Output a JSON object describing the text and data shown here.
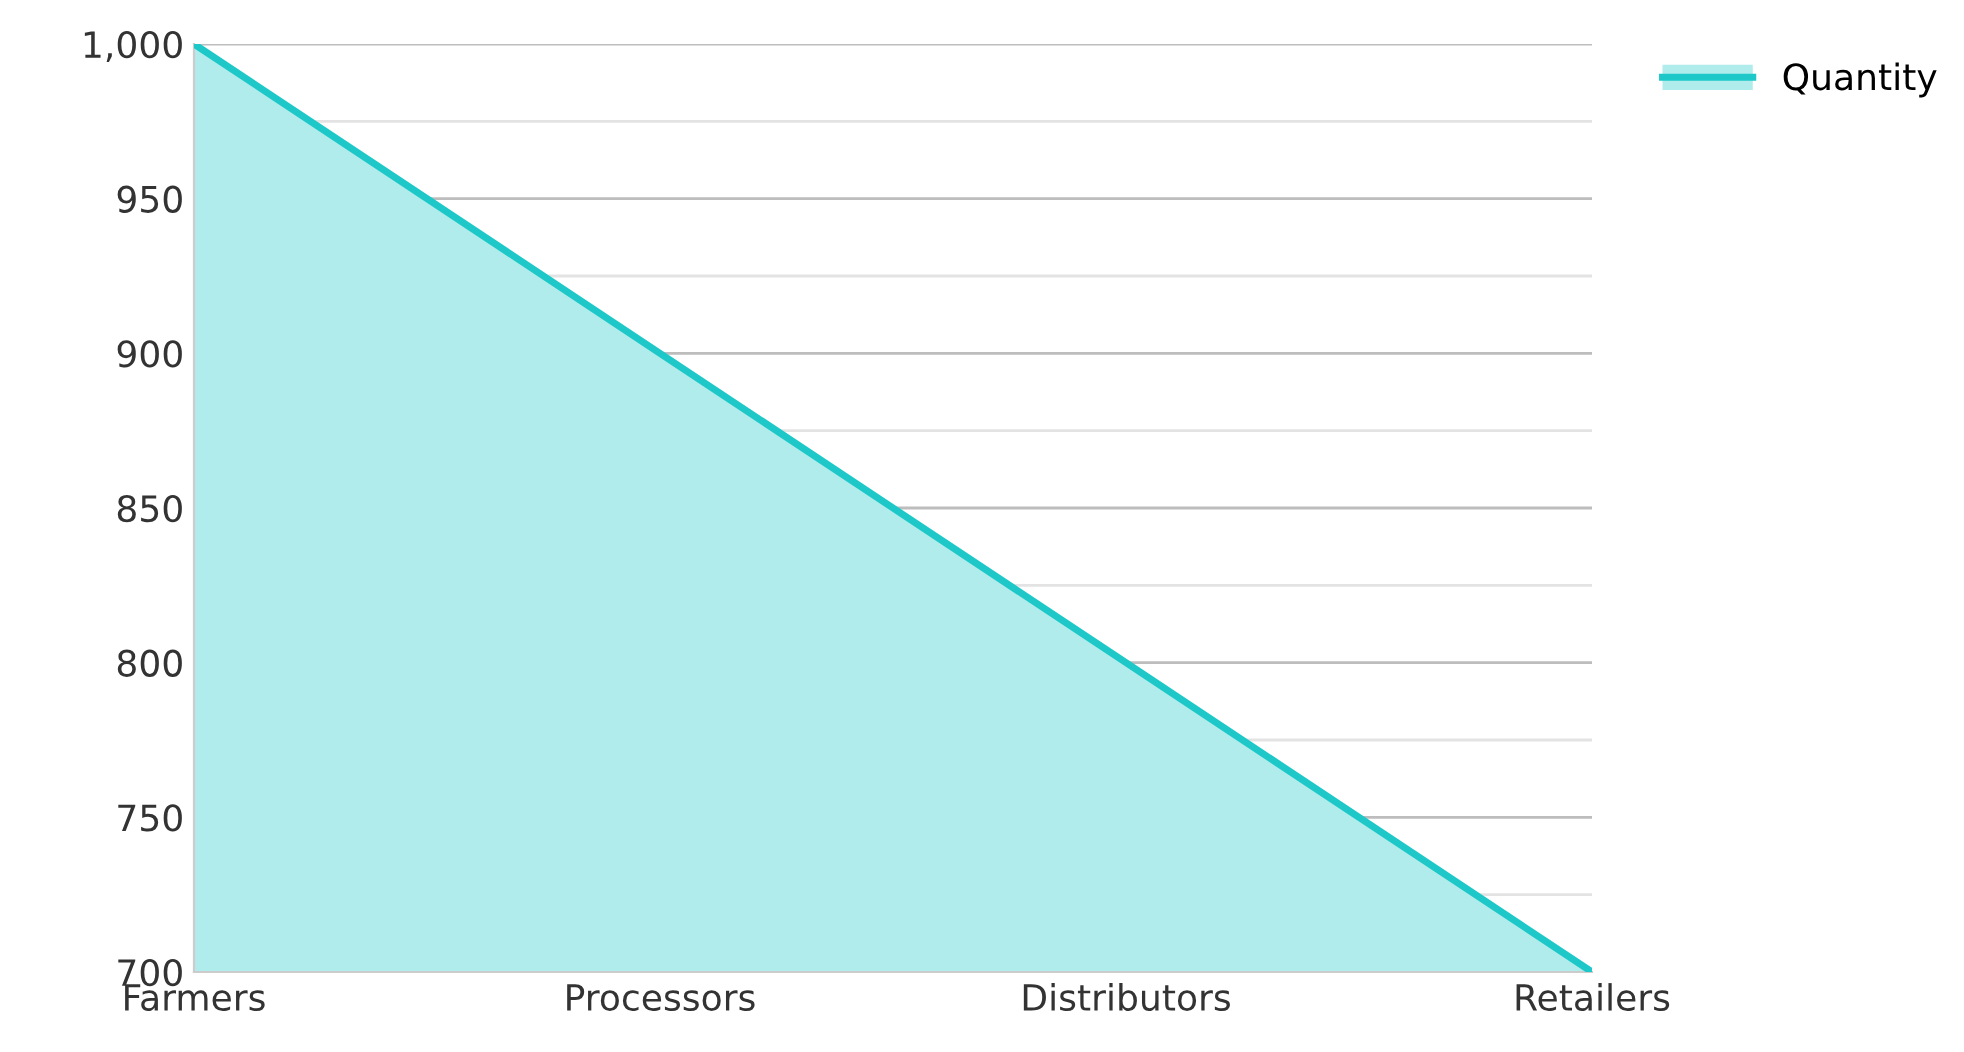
{
  "chart_data": {
    "type": "area",
    "categories": [
      "Farmers",
      "Processors",
      "Distributors",
      "Retailers"
    ],
    "series": [
      {
        "name": "Quantity",
        "color": "#1ec8c8",
        "values": [
          1000,
          900,
          800,
          700
        ]
      }
    ],
    "ylim": [
      700,
      1000
    ],
    "yticks": [
      700,
      {
        "value": 725,
        "label": null
      },
      750,
      {
        "value": 775,
        "label": null
      },
      800,
      {
        "value": 825,
        "label": null
      },
      850,
      {
        "value": 875,
        "label": null
      },
      900,
      {
        "value": 925,
        "label": null
      },
      950,
      {
        "value": 975,
        "label": null
      },
      {
        "value": 1000,
        "label": "1,000"
      }
    ],
    "grid": "y",
    "legend": "top right"
  }
}
